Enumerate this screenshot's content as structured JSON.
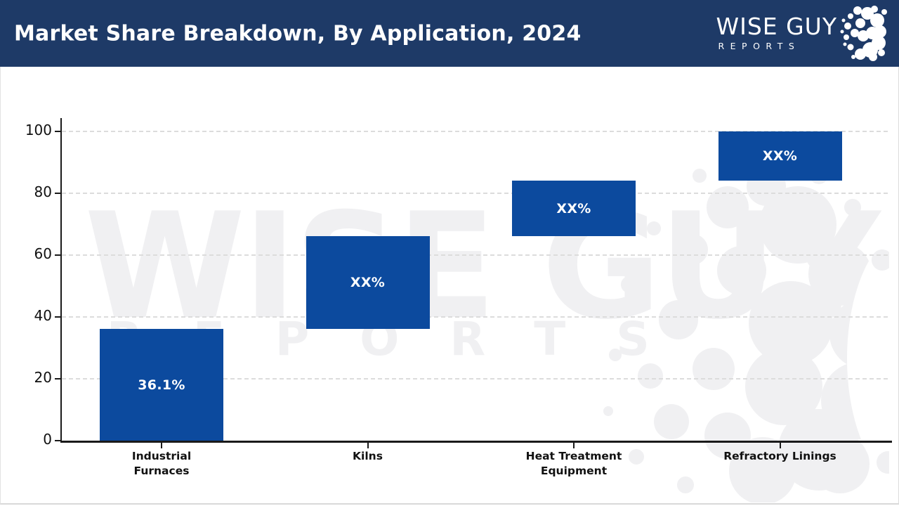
{
  "header": {
    "title": "Market Share Breakdown, By Application, 2024",
    "logo": {
      "line1": "WISE GUY",
      "line2": "REPORTS"
    }
  },
  "watermark": {
    "line1": "WISE GUY",
    "line2": "REPORTS"
  },
  "chart_data": {
    "type": "bar",
    "subtype": "floating-waterfall",
    "title": "Market Share Breakdown, By Application, 2024",
    "categories": [
      "Industrial Furnaces",
      "Kilns",
      "Heat Treatment Equipment",
      "Refractory Linings"
    ],
    "category_lines": [
      [
        "Industrial",
        "Furnaces"
      ],
      [
        "Kilns"
      ],
      [
        "Heat Treatment",
        "Equipment"
      ],
      [
        "Refractory Linings"
      ]
    ],
    "bars": [
      {
        "category": "Industrial Furnaces",
        "start": 0,
        "end": 36.1,
        "label": "36.1%"
      },
      {
        "category": "Kilns",
        "start": 36.1,
        "end": 66.1,
        "label": "XX%"
      },
      {
        "category": "Heat Treatment Equipment",
        "start": 66.1,
        "end": 84.1,
        "label": "XX%"
      },
      {
        "category": "Refractory Linings",
        "start": 84.1,
        "end": 100,
        "label": "XX%"
      }
    ],
    "yticks": [
      0,
      20,
      40,
      60,
      80,
      100
    ],
    "ylim": [
      0,
      104
    ],
    "xlabel": "",
    "ylabel": "",
    "grid": "horizontal-dashed",
    "legend": "none",
    "bar_color": "#0c4a9e",
    "bar_label_color": "#ffffff"
  },
  "colors": {
    "header_bg": "#1e3a67",
    "bar": "#0c4a9e",
    "grid": "#dcdcdc",
    "axis": "#1a1a1a",
    "watermark": "#f0f0f2",
    "title_text": "#ffffff"
  }
}
